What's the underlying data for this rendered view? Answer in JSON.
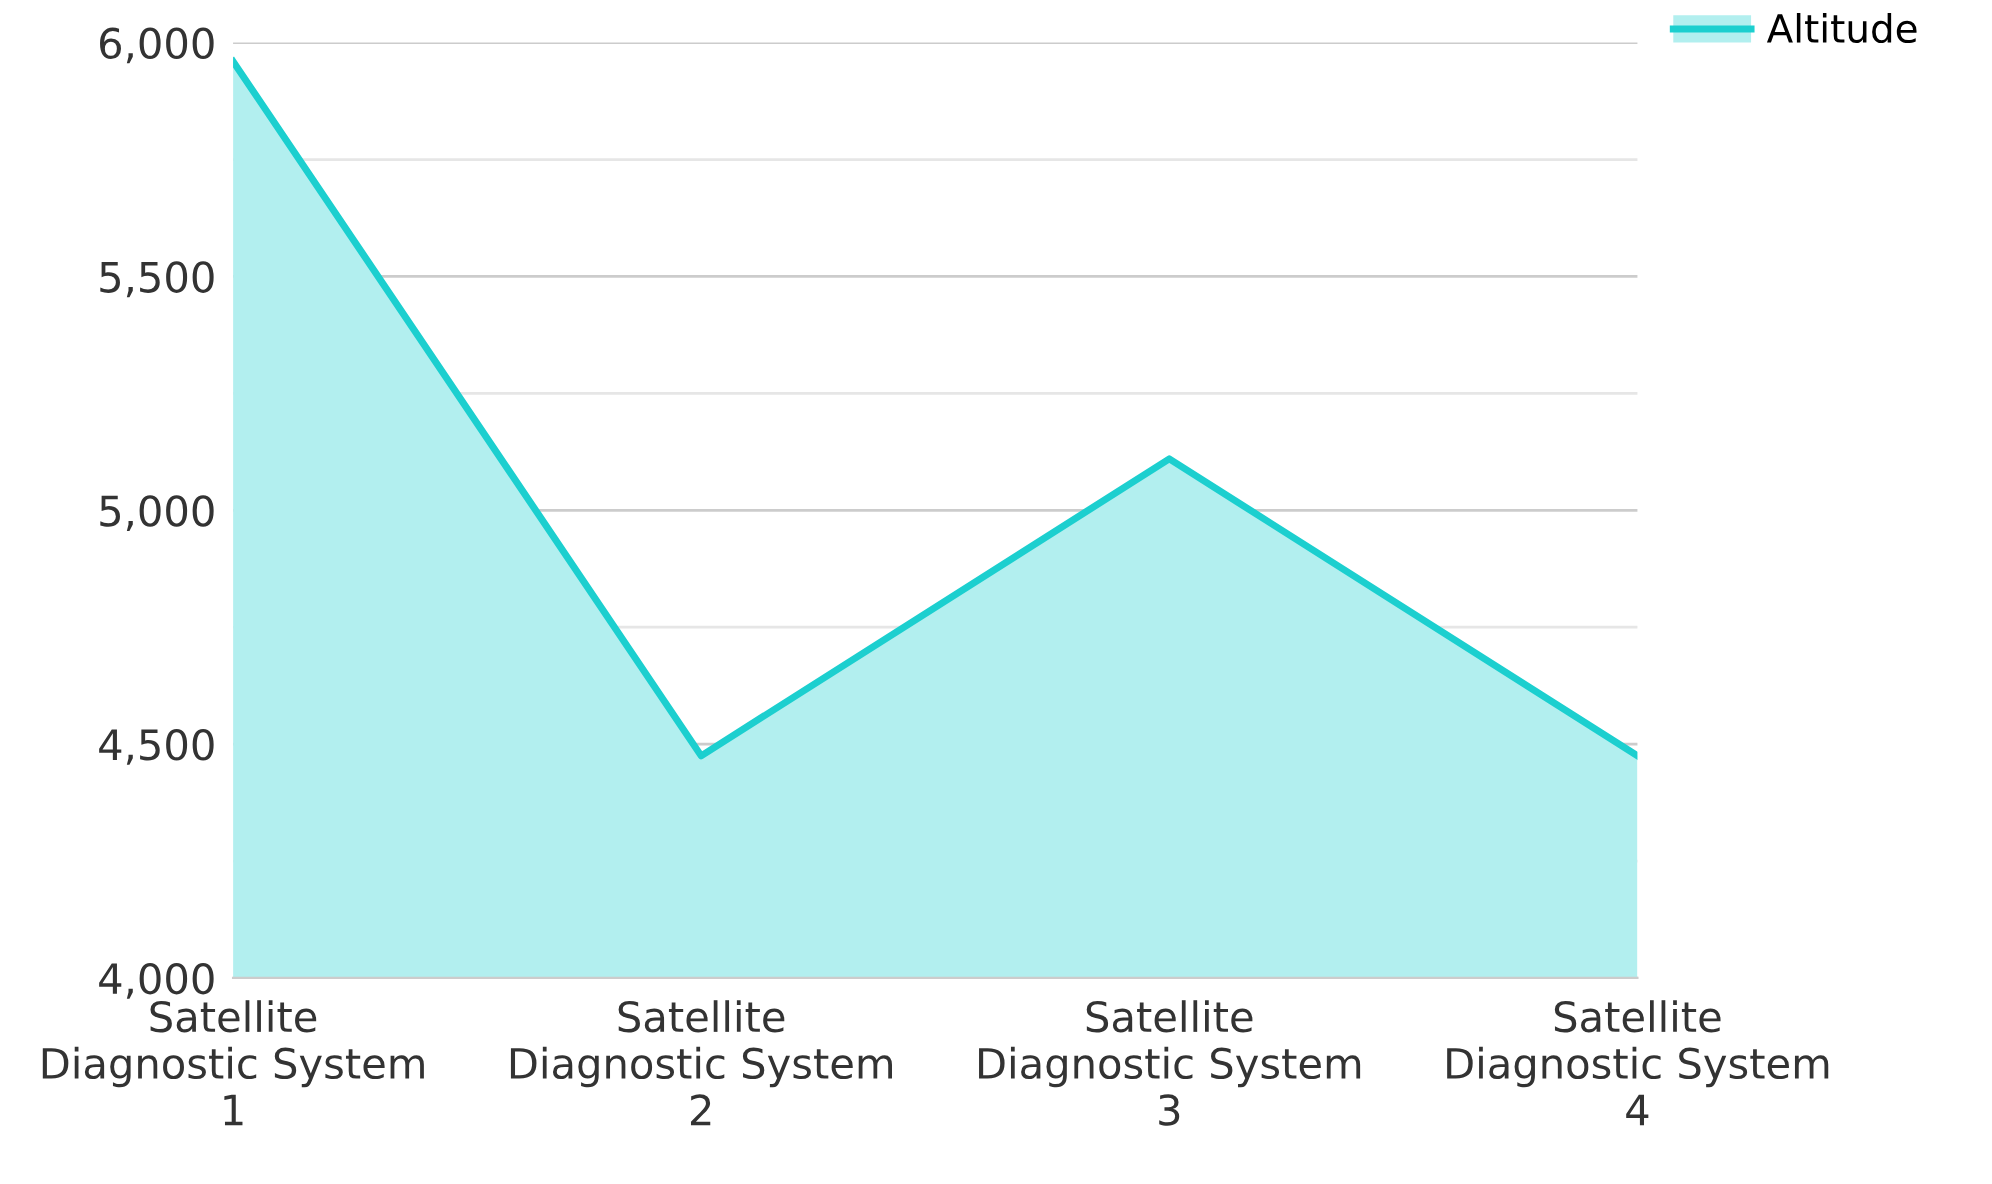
{
  "chart_data": {
    "type": "area",
    "categories": [
      "Satellite Diagnostic System 1",
      "Satellite Diagnostic System 2",
      "Satellite Diagnostic System 3",
      "Satellite Diagnostic System 4"
    ],
    "series": [
      {
        "name": "Altitude",
        "color": "#1ccfcf",
        "values": [
          5960,
          4475,
          5110,
          4475
        ]
      }
    ],
    "ylim": [
      4000,
      6000
    ],
    "yticks": [
      {
        "value": 4000,
        "label": "4,000"
      },
      {
        "value": 4250,
        "label": null
      },
      {
        "value": 4500,
        "label": "4,500"
      },
      {
        "value": 4750,
        "label": null
      },
      {
        "value": 5000,
        "label": "5,000"
      },
      {
        "value": 5250,
        "label": null
      },
      {
        "value": 5500,
        "label": "5,500"
      },
      {
        "value": 5750,
        "label": null
      },
      {
        "value": 6000,
        "label": "6,000"
      }
    ],
    "grid": "y",
    "legend": "top right"
  }
}
